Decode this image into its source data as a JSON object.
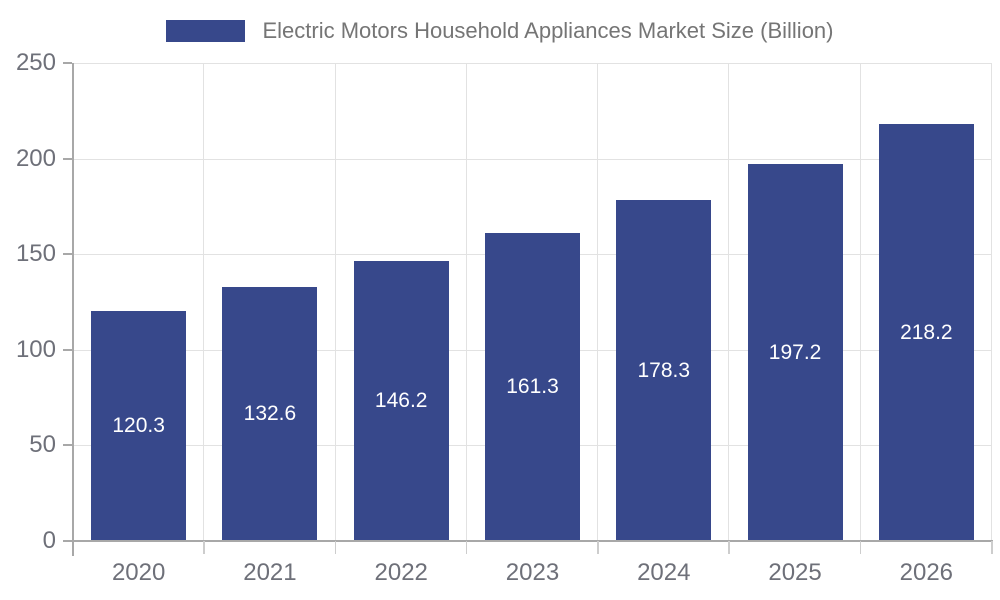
{
  "chart_data": {
    "type": "bar",
    "title": "Electric Motors Household Appliances Market Size (Billion)",
    "legend": {
      "position": "top",
      "label": "Electric Motors Household Appliances Market Size (Billion)"
    },
    "categories": [
      "2020",
      "2021",
      "2022",
      "2023",
      "2024",
      "2025",
      "2026"
    ],
    "values": [
      120.3,
      132.6,
      146.2,
      161.3,
      178.3,
      197.2,
      218.2
    ],
    "value_labels": [
      "120.3",
      "132.6",
      "146.2",
      "161.3",
      "178.3",
      "197.2",
      "218.2"
    ],
    "xlabel": "",
    "ylabel": "",
    "ylim": [
      0,
      250
    ],
    "yticks": [
      0,
      50,
      100,
      150,
      200,
      250
    ],
    "grid": true,
    "colors": {
      "bar": "#37488B",
      "grid_line": "#E2E2E2",
      "axis_line": "#A8A8A8",
      "x_tick_mark": "#CDCDCD",
      "tick_label": "#6E7079",
      "legend_text": "#757575",
      "value_label": "#FFFFFF",
      "background": "#FFFFFF"
    }
  }
}
